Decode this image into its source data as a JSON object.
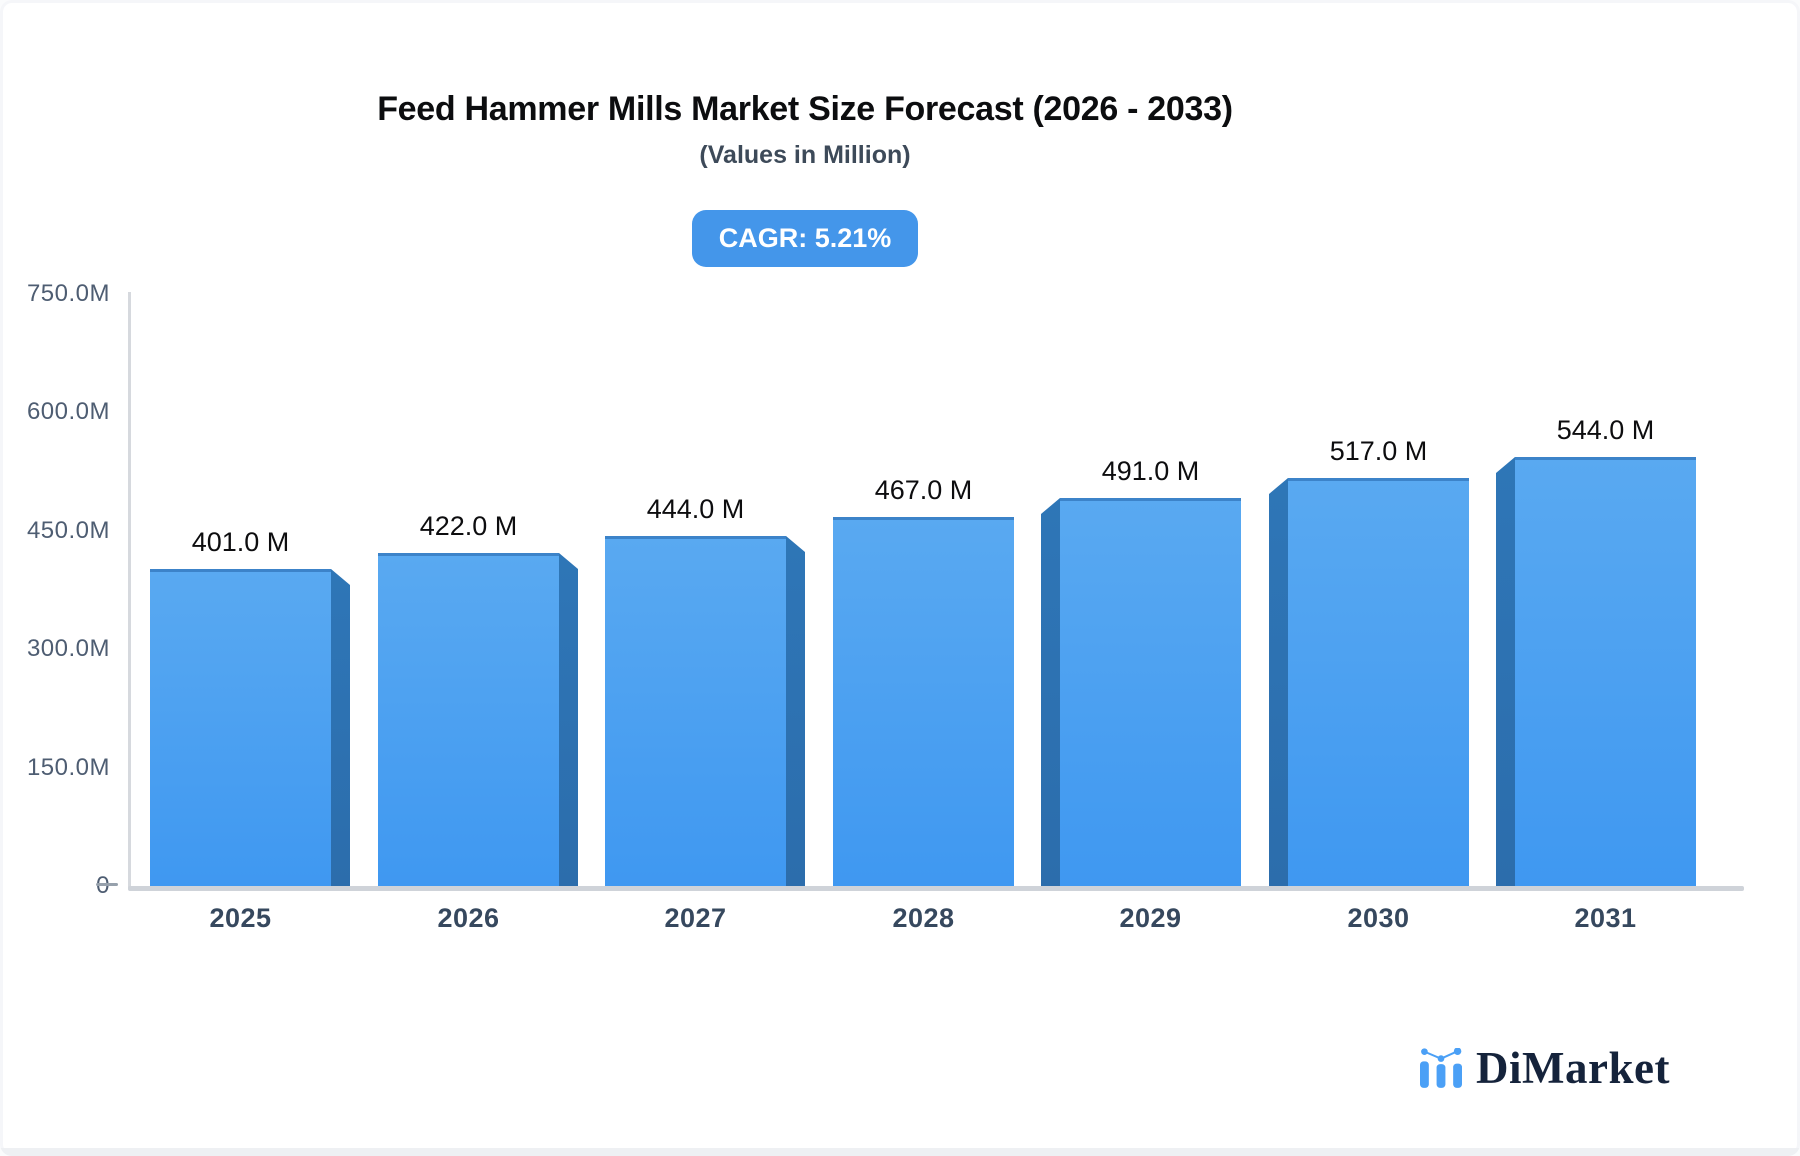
{
  "chart_data": {
    "type": "bar",
    "style": "3d-perspective-bars",
    "title": "Feed Hammer Mills Market Size Forecast (2026 - 2033)",
    "subtitle": "(Values in Million)",
    "annotation": "CAGR: 5.21%",
    "categories": [
      "2025",
      "2026",
      "2027",
      "2028",
      "2029",
      "2030",
      "2031"
    ],
    "values": [
      401.0,
      422.0,
      444.0,
      467.0,
      491.0,
      517.0,
      544.0
    ],
    "bar_labels": [
      "401.0 M",
      "422.0 M",
      "444.0 M",
      "467.0 M",
      "491.0 M",
      "517.0 M",
      "544.0 M"
    ],
    "unit": "Million",
    "ylim": [
      0,
      750
    ],
    "yticks": [
      {
        "label": "750.0M",
        "value": 750
      },
      {
        "label": "600.0M",
        "value": 600
      },
      {
        "label": "450.0M",
        "value": 450
      },
      {
        "label": "300.0M",
        "value": 300
      },
      {
        "label": "150.0M",
        "value": 150
      },
      {
        "label": "0",
        "value": 0
      }
    ],
    "grid": false,
    "legend": false,
    "colors": {
      "bar_front_top": "#59a9f1",
      "bar_front_bottom": "#3f98f1",
      "bar_side_top": "#2e76b7",
      "bar_side_bottom": "#2c6dac",
      "bar_top_edge": "#3c83c9",
      "badge_bg": "#4496ea",
      "badge_text": "#ffffff"
    }
  },
  "branding": {
    "logo_text": "DiMarket"
  }
}
